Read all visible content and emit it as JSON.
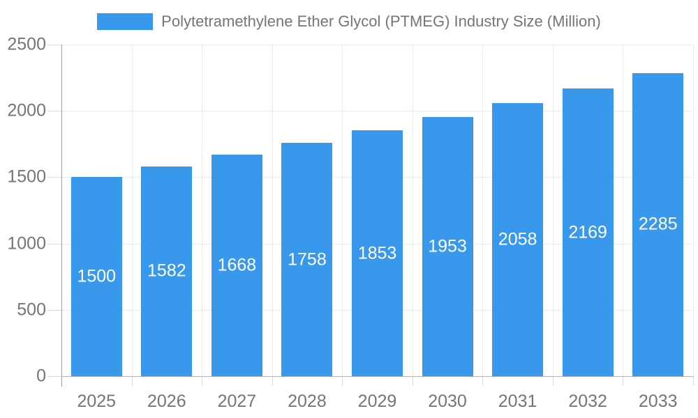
{
  "chart_data": {
    "type": "bar",
    "title": "Polytetramethylene Ether Glycol (PTMEG) Industry Size (Million)",
    "legend": {
      "label": "Polytetramethylene Ether Glycol (PTMEG) Industry Size (Million)",
      "position": "top-center",
      "swatch_color": "#3899EC"
    },
    "categories": [
      "2025",
      "2026",
      "2027",
      "2028",
      "2029",
      "2030",
      "2031",
      "2032",
      "2033"
    ],
    "values": [
      1500,
      1582,
      1668,
      1758,
      1853,
      1953,
      2058,
      2169,
      2285
    ],
    "xlabel": "",
    "ylabel": "",
    "ylim": [
      0,
      2500
    ],
    "y_ticks": [
      0,
      500,
      1000,
      1500,
      2000,
      2500
    ],
    "grid": "on",
    "colors": {
      "bar": "#3899EC",
      "axis_text": "#757575",
      "value_label": "#FFFFFF",
      "gridline": "#EBEBEB",
      "y_axis_line": "#9E9E9E",
      "x_axis_line": "#B3B3B3",
      "tick": "#D9D9D9"
    }
  }
}
